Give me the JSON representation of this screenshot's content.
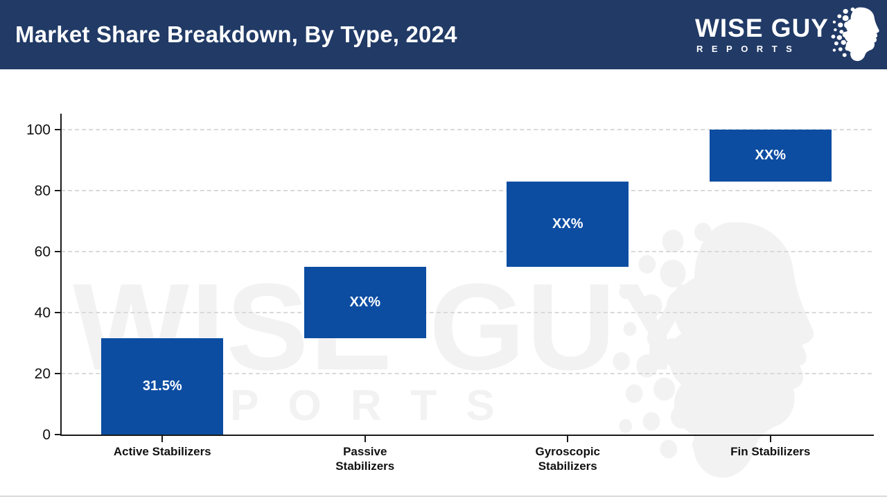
{
  "header": {
    "title": "Market Share Breakdown, By Type, 2024",
    "logo": {
      "line1": "WISE GUY",
      "line2": "REPORTS"
    }
  },
  "watermark": {
    "line1": "WISE GUY",
    "line2": "REPORTS"
  },
  "colors": {
    "header_bg": "#213a66",
    "bar_blue": "#0c4da2",
    "grid_gray": "#d9d9d9",
    "watermark_gray": "#f2f2f3",
    "axis_black": "#1a1a1a",
    "title_white": "#ffffff"
  },
  "chart_data": {
    "type": "bar",
    "subtype": "waterfall",
    "title": "Market Share Breakdown, By Type, 2024",
    "categories": [
      "Active Stabilizers",
      "Passive\nStabilizers",
      "Gyroscopic\nStabilizers",
      "Fin Stabilizers"
    ],
    "segments": [
      {
        "category": "Active Stabilizers",
        "start": 0,
        "end": 31.5,
        "label": "31.5%"
      },
      {
        "category": "Passive Stabilizers",
        "start": 31.5,
        "end": 55,
        "label": "XX%"
      },
      {
        "category": "Gyroscopic Stabilizers",
        "start": 55,
        "end": 83,
        "label": "XX%"
      },
      {
        "category": "Fin Stabilizers",
        "start": 83,
        "end": 100,
        "label": "XX%"
      }
    ],
    "xlabel": "",
    "ylabel": "",
    "ylim": [
      0,
      100
    ],
    "yticks": [
      0,
      20,
      40,
      60,
      80,
      100
    ],
    "grid": "horizontal dashed",
    "legend": "none",
    "bar_color": "#0c4da2",
    "value_label_color": "#ffffff"
  }
}
